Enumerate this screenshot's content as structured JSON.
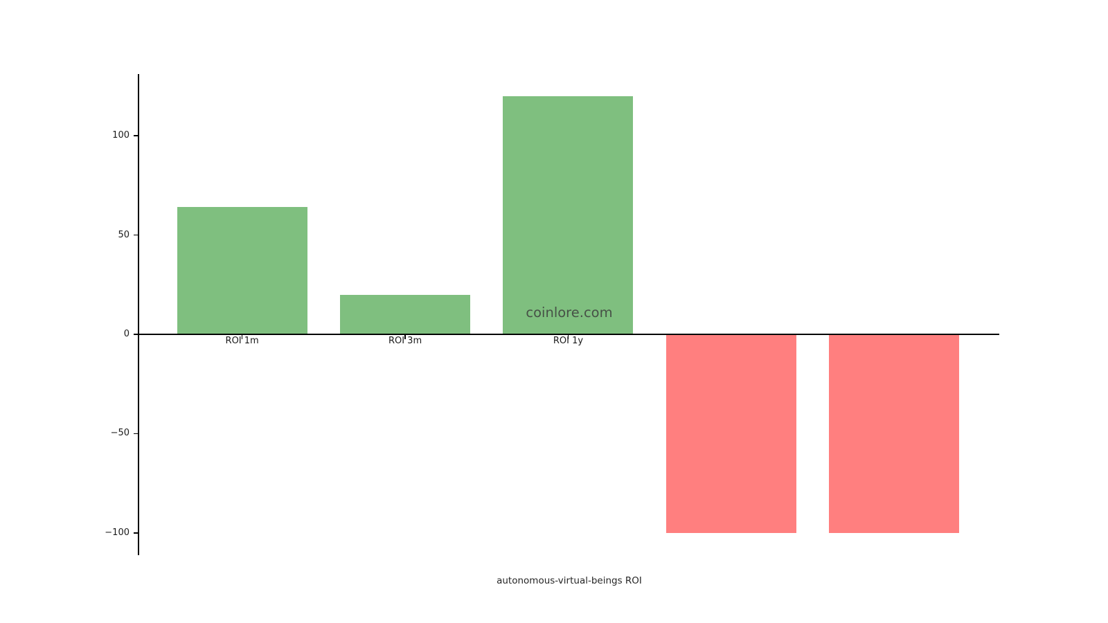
{
  "figure": {
    "background": "#ffffff"
  },
  "chart_data": {
    "type": "bar",
    "title": "",
    "xlabel": "autonomous-virtual-beings ROI",
    "ylabel": "",
    "categories": [
      "ROI 1m",
      "ROI 3m",
      "ROI 1y",
      "",
      ""
    ],
    "values": [
      64,
      20,
      120,
      -100,
      -100
    ],
    "positive_color": "#7fbf7f",
    "negative_color": "#ff7f7f",
    "yticks": [
      100,
      50,
      0,
      -50,
      -100
    ],
    "ytick_labels": [
      "100",
      "50",
      "0",
      "−50",
      "−100"
    ],
    "ylim": [
      -111,
      131
    ],
    "grid": false,
    "legend": null,
    "axis_color": "#000000",
    "text_color": "#262626",
    "watermark": "coinlore.com",
    "notes": "x axis (spine) positioned at y=0; only first three bars have tick marks and labels"
  }
}
